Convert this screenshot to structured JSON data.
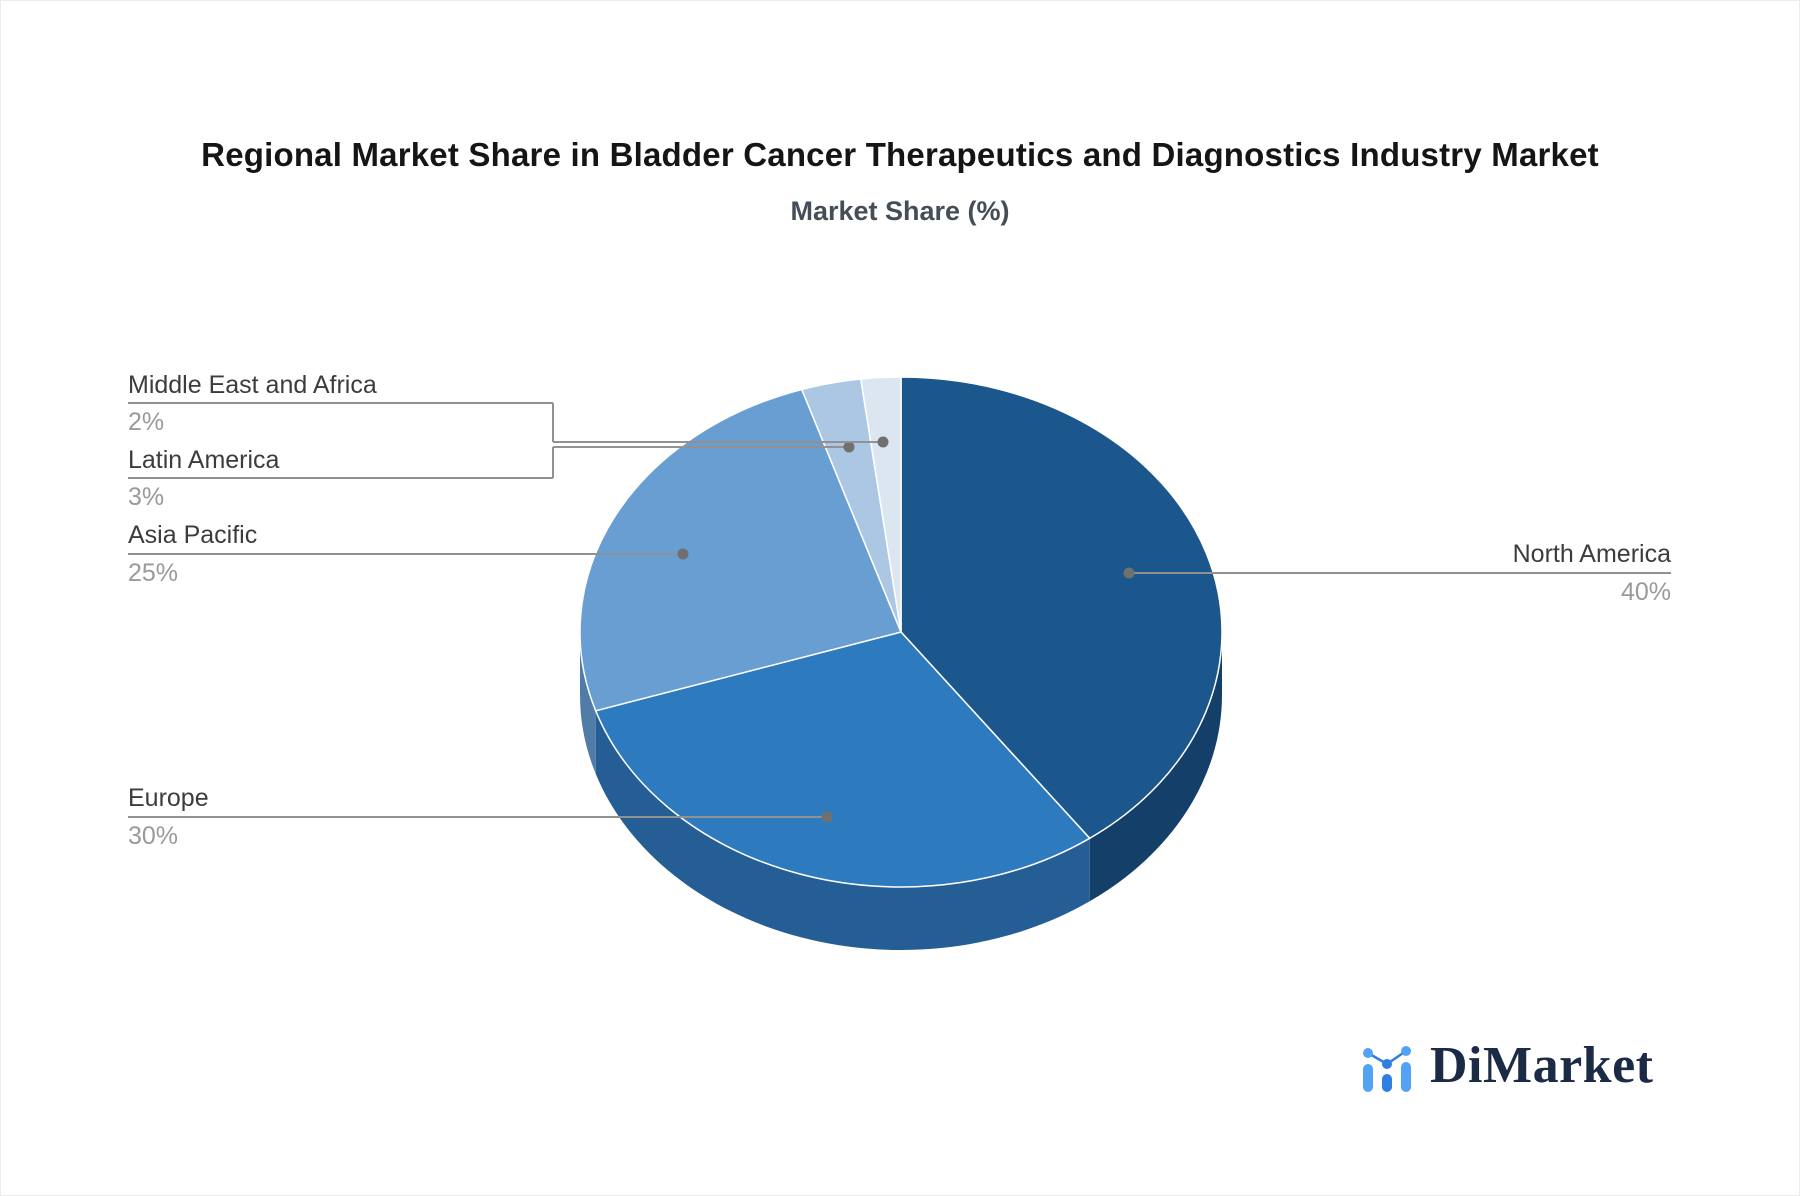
{
  "chart_data": {
    "type": "pie",
    "title": "Regional Market Share in Bladder Cancer Therapeutics and Diagnostics Industry Market",
    "subtitle": "Market Share (%)",
    "unit": "%",
    "start_angle_deg": 0,
    "clockwise": true,
    "legend": "none",
    "style_3d": true,
    "slices": [
      {
        "name": "North America",
        "value": 40,
        "pct_label": "40%",
        "color": "#1B568C",
        "side_color": "#133F68"
      },
      {
        "name": "Europe",
        "value": 30,
        "pct_label": "30%",
        "color": "#2E7ABF",
        "side_color": "#255E95"
      },
      {
        "name": "Asia Pacific",
        "value": 25,
        "pct_label": "25%",
        "color": "#699ED2",
        "side_color": "#527CA8"
      },
      {
        "name": "Latin America",
        "value": 3,
        "pct_label": "3%",
        "color": "#ABC7E3",
        "side_color": "#8FAECB"
      },
      {
        "name": "Middle East and Africa",
        "value": 2,
        "pct_label": "2%",
        "color": "#DBE6F1",
        "side_color": "#BCCBDB"
      }
    ],
    "leader_line_color": "#919191",
    "leader_dot_color": "#707070",
    "label_name_color": "#3C3C3C",
    "label_pct_color": "#9A9A9A"
  },
  "branding": {
    "logo_text": "DiMarket",
    "logo_text_color": "#1C2B45",
    "logo_bar_color": "#52A2F5",
    "logo_accent_color": "#2E7FE0"
  }
}
